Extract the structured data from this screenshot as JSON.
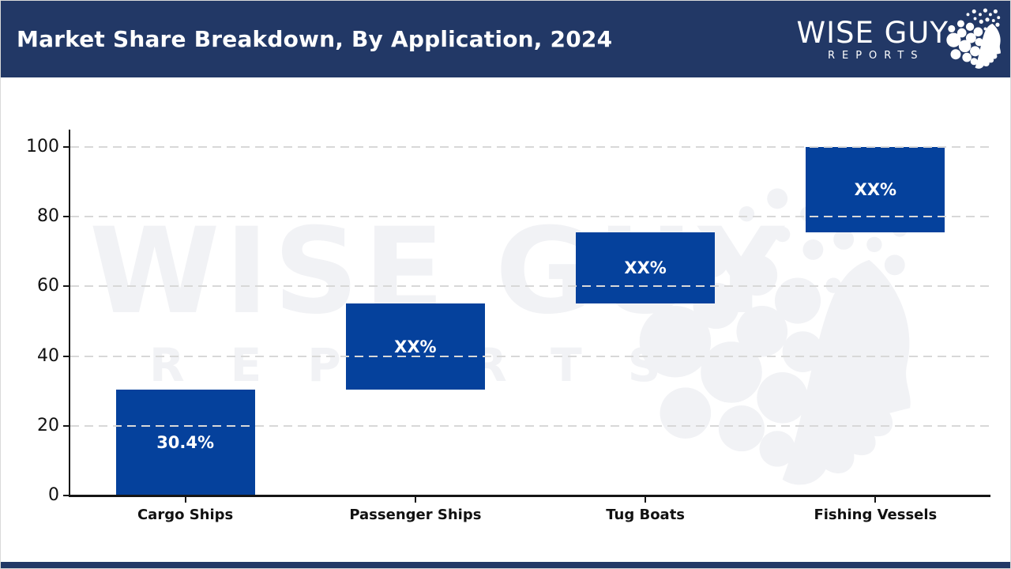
{
  "header": {
    "title": "Market Share Breakdown, By Application, 2024",
    "logo_line1": "WISE GUY",
    "logo_line2": "REPORTS"
  },
  "watermark": {
    "line1": "WISE GUY",
    "line2": "REPORTS"
  },
  "colors": {
    "header_bg": "#223866",
    "bar_blue": "#05419c",
    "grid_gray": "#d8d8d8",
    "watermark_gray": "#f1f2f5"
  },
  "chart_data": {
    "type": "bar",
    "subtype": "waterfall",
    "title": "Market Share Breakdown, By Application, 2024",
    "categories": [
      "Cargo Ships",
      "Passenger Ships",
      "Tug Boats",
      "Fishing Vessels"
    ],
    "series": [
      {
        "name": "Market Share (%)",
        "segments": [
          {
            "category": "Cargo Ships",
            "start": 0,
            "end": 30.4,
            "label": "30.4%"
          },
          {
            "category": "Passenger Ships",
            "start": 30.4,
            "end": 55.0,
            "label": "XX%"
          },
          {
            "category": "Tug Boats",
            "start": 55.0,
            "end": 75.6,
            "label": "XX%"
          },
          {
            "category": "Fishing Vessels",
            "start": 75.6,
            "end": 100,
            "label": "XX%"
          }
        ]
      }
    ],
    "xlabel": "",
    "ylabel": "",
    "ylim": [
      0,
      100
    ],
    "yticks": [
      0,
      20,
      40,
      60,
      80,
      100
    ],
    "grid": "horizontal dashed, drawn above bars",
    "legend": "none",
    "bar_color": "#05419c",
    "value_labels_inside_bars": true
  }
}
